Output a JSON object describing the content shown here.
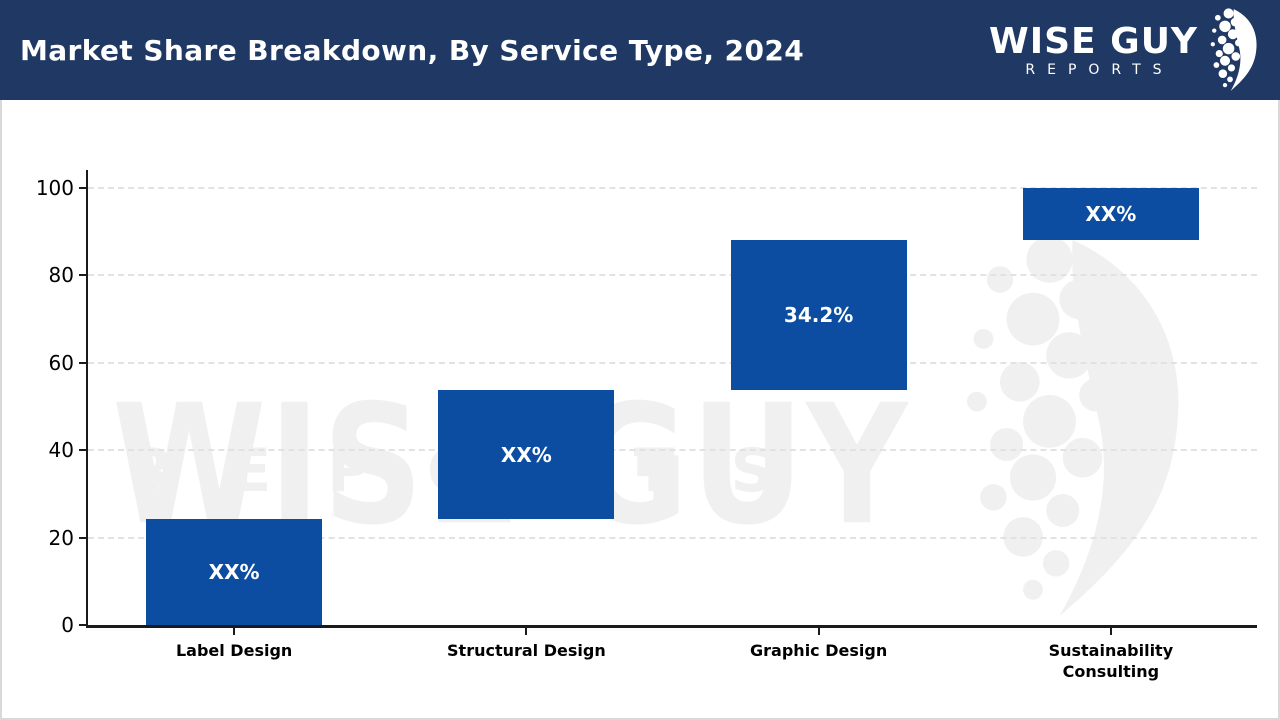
{
  "header": {
    "title": "Market Share Breakdown, By Service Type, 2024",
    "bg_color": "#1f3864",
    "logo": {
      "line1": "WISE GUY",
      "line2": "REPORTS"
    }
  },
  "watermark": {
    "line1": "WISE GUY",
    "line2": "REPORTS"
  },
  "chart_data": {
    "type": "bar",
    "subtype": "floating-segment-waterfall",
    "title": "Market Share Breakdown, By Service Type, 2024",
    "categories": [
      "Label Design",
      "Structural Design",
      "Graphic Design",
      "Sustainability Consulting"
    ],
    "series": [
      {
        "name": "Market Share (%)",
        "ranges": [
          [
            0,
            24.2
          ],
          [
            24.2,
            53.7
          ],
          [
            53.7,
            87.9
          ],
          [
            87.9,
            100
          ]
        ],
        "bar_labels": [
          "XX%",
          "XX%",
          "34.2%",
          "XX%"
        ]
      }
    ],
    "known_values": {
      "Graphic Design": 34.2
    },
    "xlabel": "",
    "ylabel": "",
    "yticks": [
      0,
      20,
      40,
      60,
      80,
      100
    ],
    "ylim": [
      0,
      104
    ],
    "grid": "horizontal-dashed",
    "legend": "none",
    "colors": {
      "bar": "#0c4da2",
      "grid": "#e2e2e2",
      "axis": "#1a1a1a",
      "bar_label_text": "#ffffff",
      "tick_text": "#000000"
    }
  }
}
